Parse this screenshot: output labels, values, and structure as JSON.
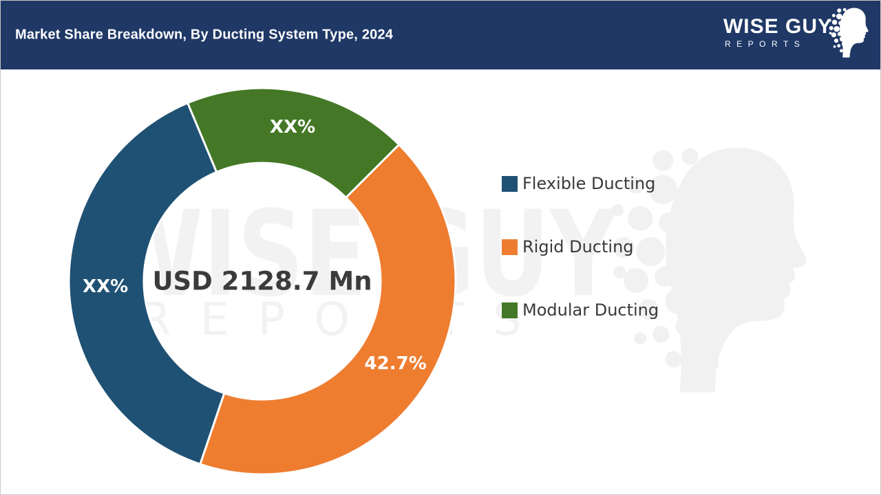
{
  "header": {
    "title": "Market Share Breakdown, By Ducting System Type, 2024",
    "bg_color": "#1F3866",
    "logo": {
      "line1": "WISE GUY",
      "line2": "REPORTS"
    }
  },
  "chart_data": {
    "type": "pie",
    "subtype": "donut",
    "title": "Market Share Breakdown, By Ducting System Type, 2024",
    "center_label": "USD 2128.7 Mn",
    "start_angle_deg": -45,
    "direction": "clockwise",
    "legend_position": "right",
    "segments": [
      {
        "name": "Rigid Ducting",
        "display_label": "42.7%",
        "value_pct_est": 42.7,
        "color": "#EE7D30"
      },
      {
        "name": "Flexible Ducting",
        "display_label": "XX%",
        "value_pct_est": 38.5,
        "color": "#1F5174"
      },
      {
        "name": "Modular Ducting",
        "display_label": "XX%",
        "value_pct_est": 18.8,
        "color": "#447826"
      }
    ]
  },
  "legend": {
    "items": [
      {
        "label": "Flexible Ducting",
        "color": "#1F5174"
      },
      {
        "label": "Rigid Ducting",
        "color": "#EE7D30"
      },
      {
        "label": "Modular Ducting",
        "color": "#447826"
      }
    ]
  },
  "watermark": {
    "line1": "WISE GUY",
    "line2": "REPORTS",
    "color": "#F2F2F2"
  }
}
